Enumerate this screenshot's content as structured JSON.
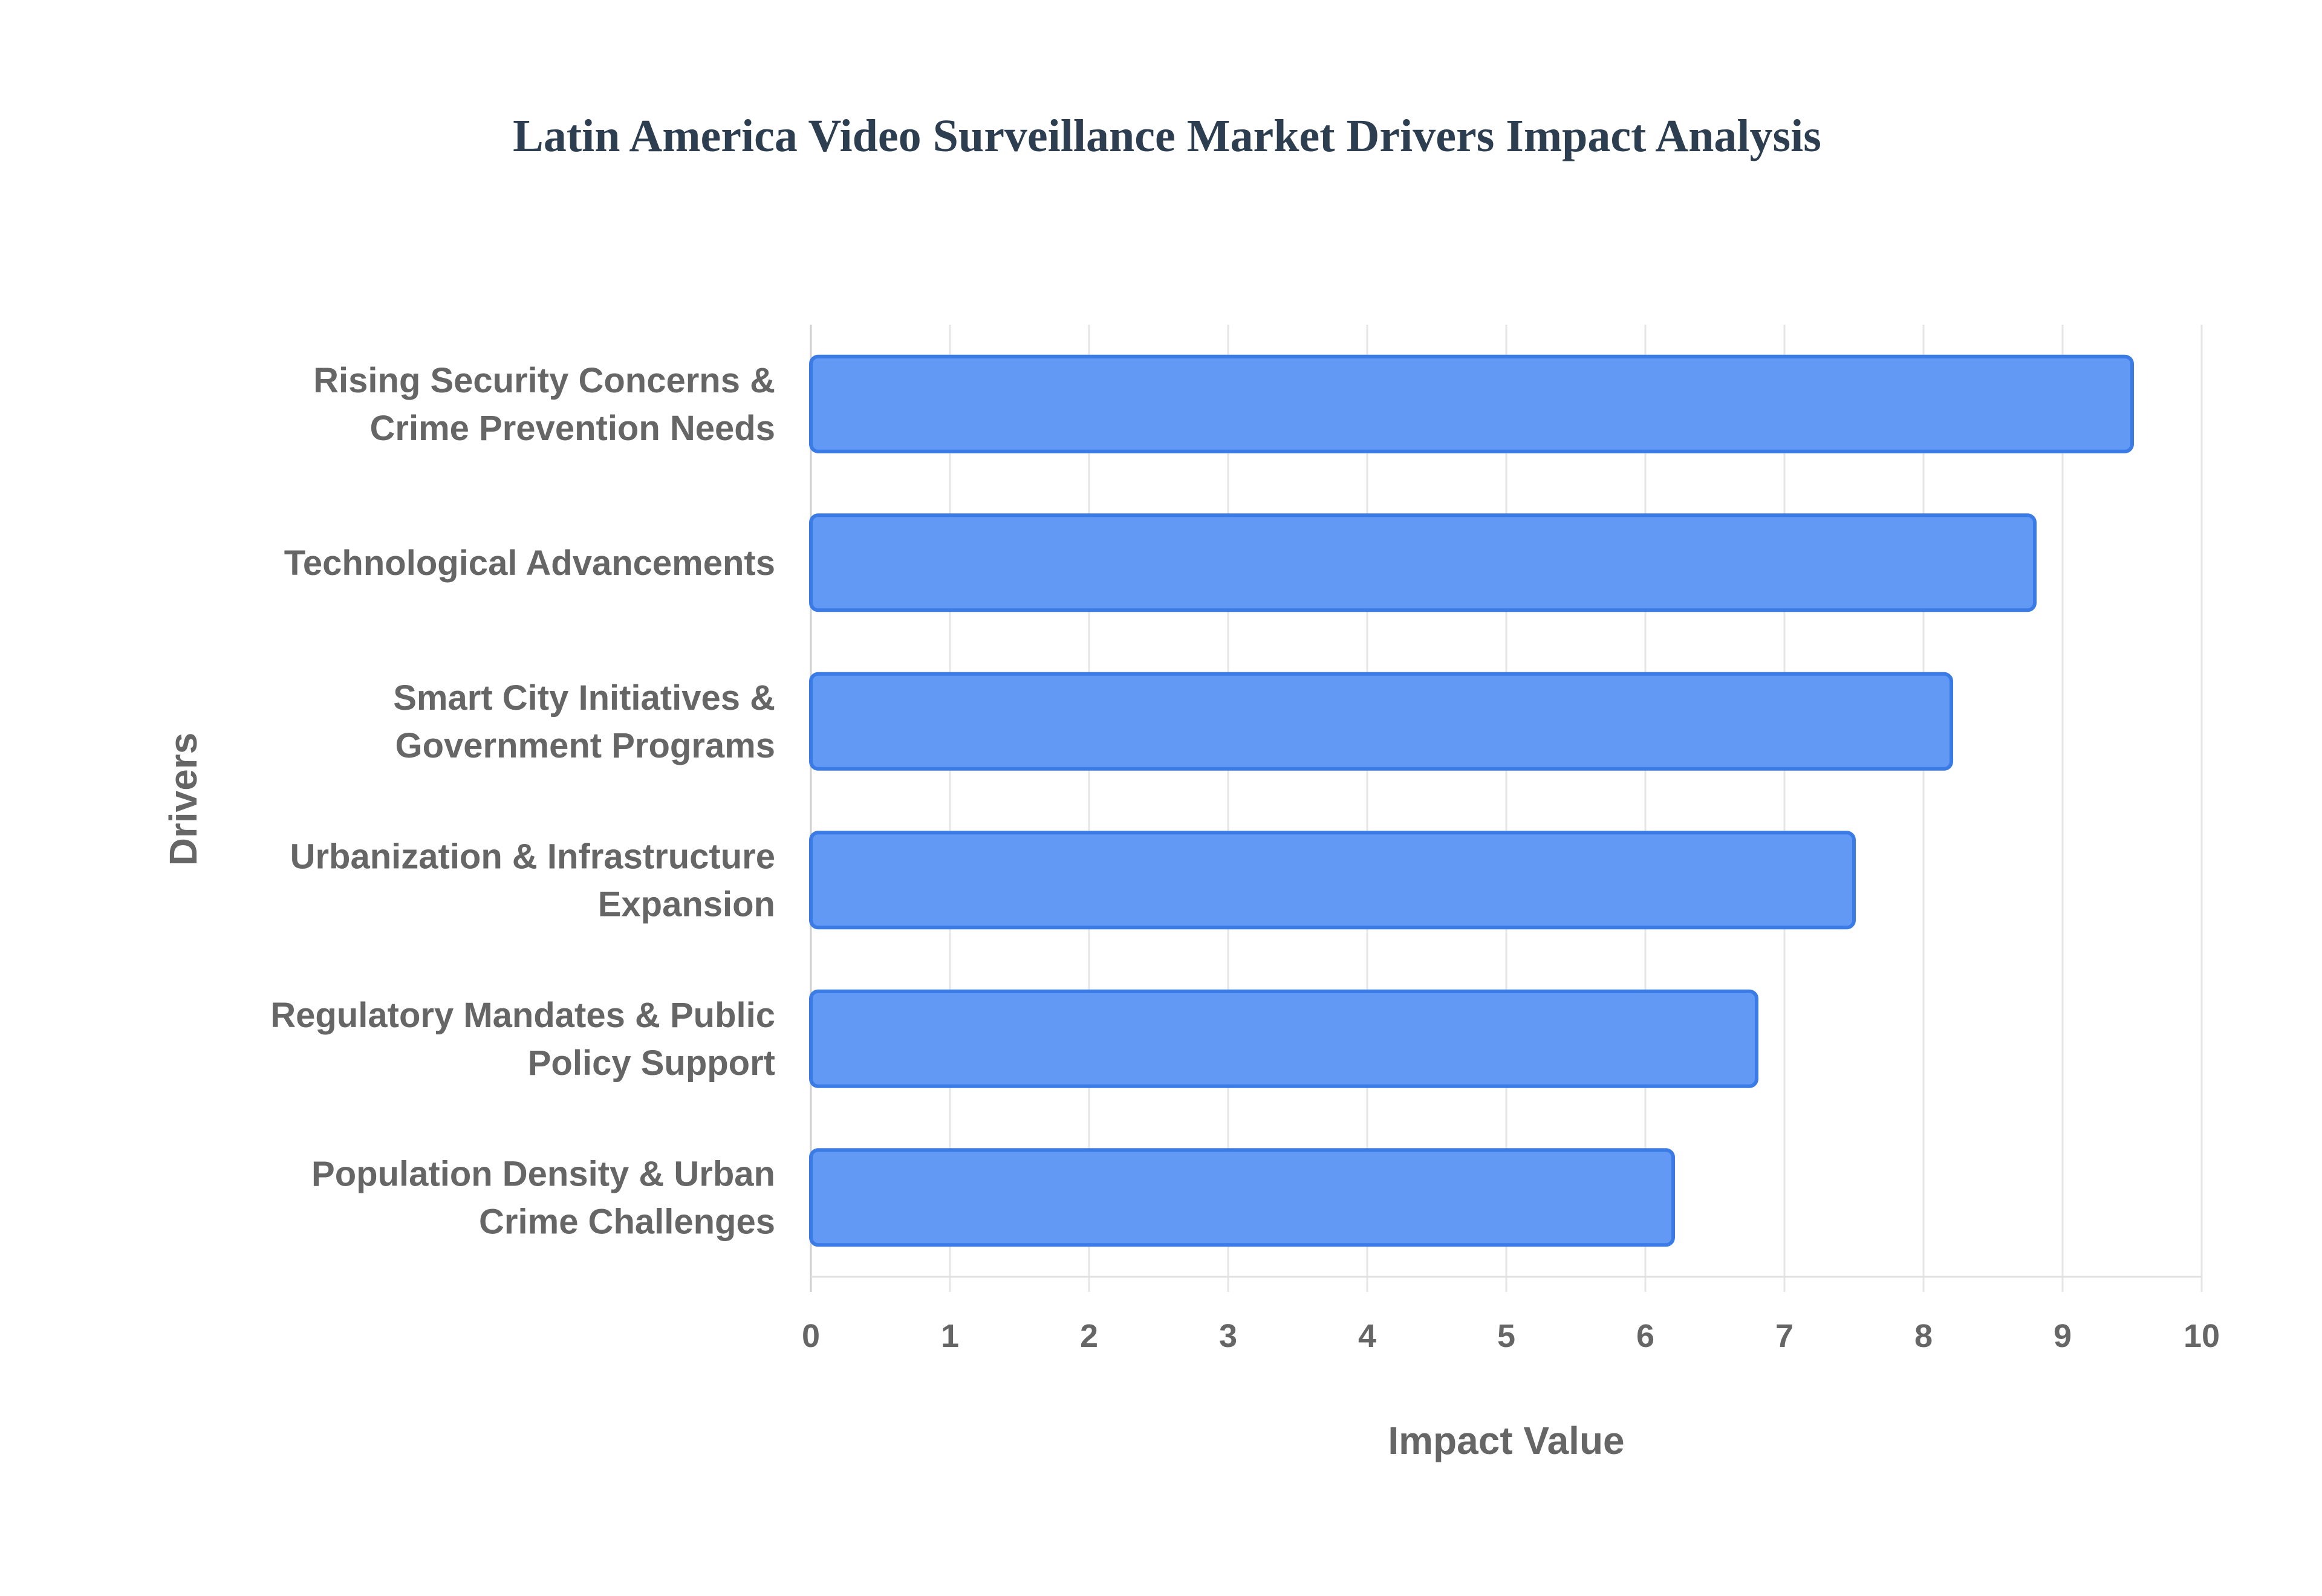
{
  "chart_data": {
    "type": "bar",
    "orientation": "horizontal",
    "title": "Latin America Video Surveillance Market Drivers Impact Analysis",
    "xlabel": "Impact Value",
    "ylabel": "Drivers",
    "xlim": [
      0,
      10
    ],
    "xticks": [
      "0",
      "1",
      "2",
      "3",
      "4",
      "5",
      "6",
      "7",
      "8",
      "9",
      "10"
    ],
    "grid": true,
    "categories": [
      [
        "Rising Security Concerns &",
        "Crime Prevention Needs"
      ],
      [
        "Technological Advancements"
      ],
      [
        "Smart City Initiatives &",
        "Government Programs"
      ],
      [
        "Urbanization & Infrastructure",
        "Expansion"
      ],
      [
        "Regulatory Mandates & Public",
        "Policy Support"
      ],
      [
        "Population Density & Urban",
        "Crime Challenges"
      ]
    ],
    "values": [
      9.5,
      8.8,
      8.2,
      7.5,
      6.8,
      6.2
    ],
    "colors": {
      "bar_fill": "#6199f5",
      "bar_border": "#3b7be6",
      "grid": "#e6e6e6"
    }
  }
}
